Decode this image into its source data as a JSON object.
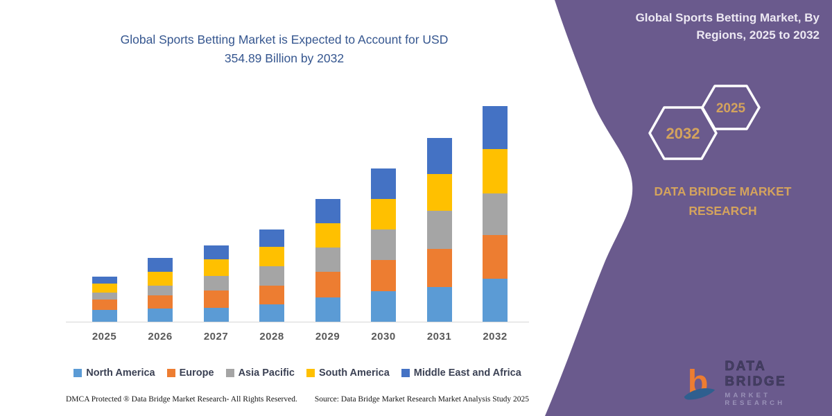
{
  "title": {
    "line1": "Global Sports Betting Market is Expected to Account for USD",
    "line2": "354.89 Billion by 2032"
  },
  "side_panel": {
    "heading_line1": "Global Sports Betting Market, By",
    "heading_line2": "Regions, 2025 to 2032",
    "hexagon_large_label": "2032",
    "hexagon_small_label": "2025",
    "brand_line1": "DATA BRIDGE MARKET",
    "brand_line2": "RESEARCH",
    "panel_color": "#6a5a8d",
    "gold_color": "#D4A35D"
  },
  "chart_data": {
    "type": "bar",
    "stacked": true,
    "unit": "USD Billion",
    "title": "Global Sports Betting Market is Expected to Account for USD 354.89 Billion by 2032",
    "xlabel": "",
    "ylabel": "",
    "ylim": [
      0,
      370
    ],
    "grid": false,
    "legend_position": "bottom",
    "categories": [
      "2025",
      "2026",
      "2027",
      "2028",
      "2029",
      "2030",
      "2031",
      "2032"
    ],
    "series": [
      {
        "name": "North America",
        "color": "#5B9BD5",
        "values": [
          19.4,
          21.7,
          22.8,
          28.5,
          39.9,
          50.2,
          57.1,
          70.8
        ]
      },
      {
        "name": "Europe",
        "color": "#ED7D31",
        "values": [
          17.1,
          21.7,
          28.5,
          30.8,
          42.2,
          51.3,
          62.8,
          71.9
        ]
      },
      {
        "name": "Asia Pacific",
        "color": "#A5A5A5",
        "values": [
          11.4,
          16.0,
          24.0,
          32.0,
          39.9,
          50.2,
          62.8,
          68.5
        ]
      },
      {
        "name": "South America",
        "color": "#FFC000",
        "values": [
          14.8,
          22.8,
          27.4,
          32.0,
          39.9,
          50.2,
          60.5,
          73.0
        ]
      },
      {
        "name": "Middle East and Africa",
        "color": "#4472C4",
        "values": [
          11.4,
          22.8,
          22.8,
          28.5,
          39.9,
          50.2,
          59.3,
          70.7
        ]
      }
    ],
    "totals": [
      74.1,
      105.0,
      125.5,
      151.8,
      201.8,
      252.1,
      302.5,
      354.89
    ]
  },
  "footer": {
    "left": "DMCA Protected ® Data Bridge Market Research- All Rights Reserved.",
    "right": "Source: Data Bridge Market Research Market Analysis Study 2025"
  },
  "logo": {
    "monogram": "b",
    "name_top": "DATA BRIDGE",
    "name_bottom": "MARKET RESEARCH"
  }
}
